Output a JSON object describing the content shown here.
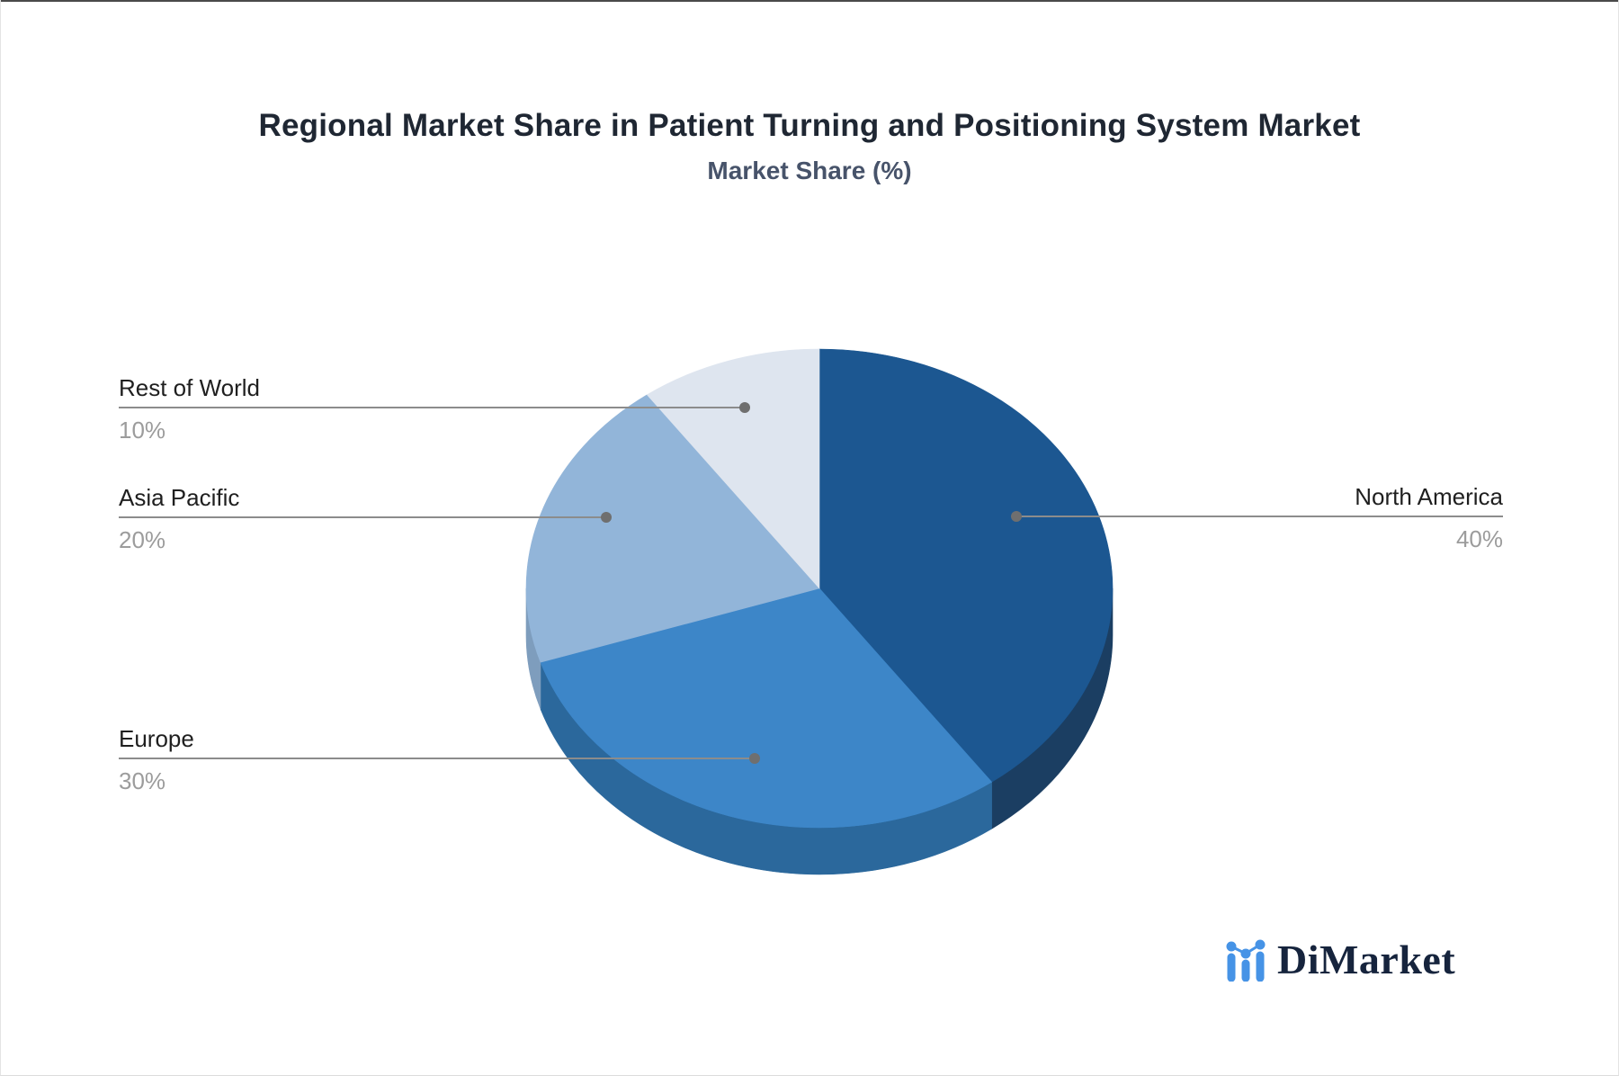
{
  "title": "Regional Market Share in Patient Turning and Positioning System Market",
  "subtitle": "Market Share (%)",
  "chart_data": {
    "type": "pie",
    "style": "3d",
    "title": "Regional Market Share in Patient Turning and Positioning System Market",
    "subtitle": "Market Share (%)",
    "unit": "%",
    "direction": "clockwise",
    "start_angle": "12-oclock",
    "legend_position": "callout-leader-lines",
    "segments": [
      {
        "label": "North America",
        "value": 40,
        "percent_label": "40%",
        "color": "#1c5791",
        "side_color": "#1b3e62"
      },
      {
        "label": "Europe",
        "value": 30,
        "percent_label": "30%",
        "color": "#3d86c8",
        "side_color": "#2b689c"
      },
      {
        "label": "Asia Pacific",
        "value": 20,
        "percent_label": "20%",
        "color": "#92b5d9",
        "side_color": "#7e9dbd"
      },
      {
        "label": "Rest of World",
        "value": 10,
        "percent_label": "10%",
        "color": "#dee5ef",
        "side_color": "#bcc8d8"
      }
    ]
  },
  "branding": {
    "logo_text": "DiMarket",
    "logo_icon": "bar-line-chart-icon",
    "logo_text_color": "#16243d",
    "logo_icon_color": "#4693e6"
  },
  "colors": {
    "leader_line": "#8c8c8c",
    "leader_dot": "#6f6f6f",
    "label_text": "#1f1f1f",
    "percent_text": "#9c9c9c",
    "title_text": "#1f2733",
    "subtitle_text": "#47536a",
    "background": "#ffffff"
  }
}
